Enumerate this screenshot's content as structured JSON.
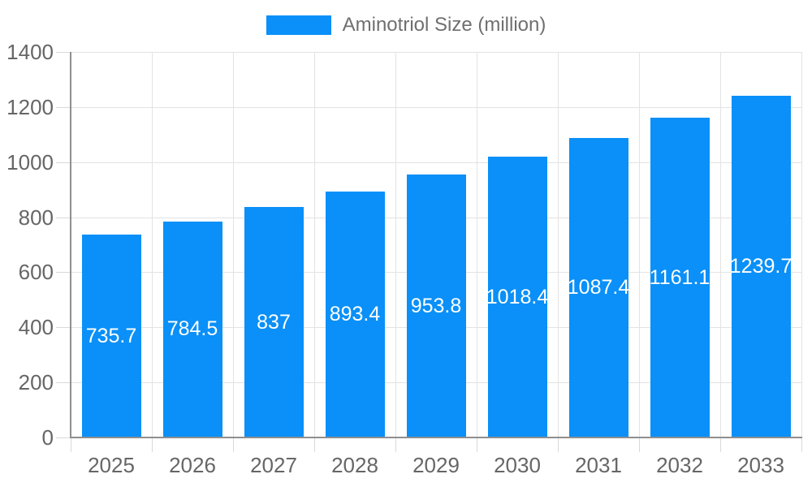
{
  "chart_data": {
    "type": "bar",
    "title": "Aminotriol Size (million)",
    "categories": [
      "2025",
      "2026",
      "2027",
      "2028",
      "2029",
      "2030",
      "2031",
      "2032",
      "2033"
    ],
    "values": [
      735.7,
      784.5,
      837,
      893.4,
      953.8,
      1018.4,
      1087.4,
      1161.1,
      1239.7
    ],
    "value_labels": [
      "735.7",
      "784.5",
      "837",
      "893.4",
      "953.8",
      "1018.4",
      "1087.4",
      "1161.1",
      "1239.7"
    ],
    "xlabel": "",
    "ylabel": "",
    "ylim": [
      0,
      1400
    ],
    "y_ticks": [
      0,
      200,
      400,
      600,
      800,
      1000,
      1200,
      1400
    ],
    "y_tick_labels": [
      "0",
      "200",
      "400",
      "600",
      "800",
      "1000",
      "1200",
      "1400"
    ],
    "grid": true,
    "legend_position": "top",
    "colors": {
      "bar": "#0a90f8",
      "grid": "#e3e3e3",
      "tick": "#d9d9d9",
      "axis": "#8f8f8f",
      "text": "#666666",
      "legend_text": "#6f6f6f",
      "value_label": "#ffffff",
      "background": "#ffffff"
    }
  }
}
